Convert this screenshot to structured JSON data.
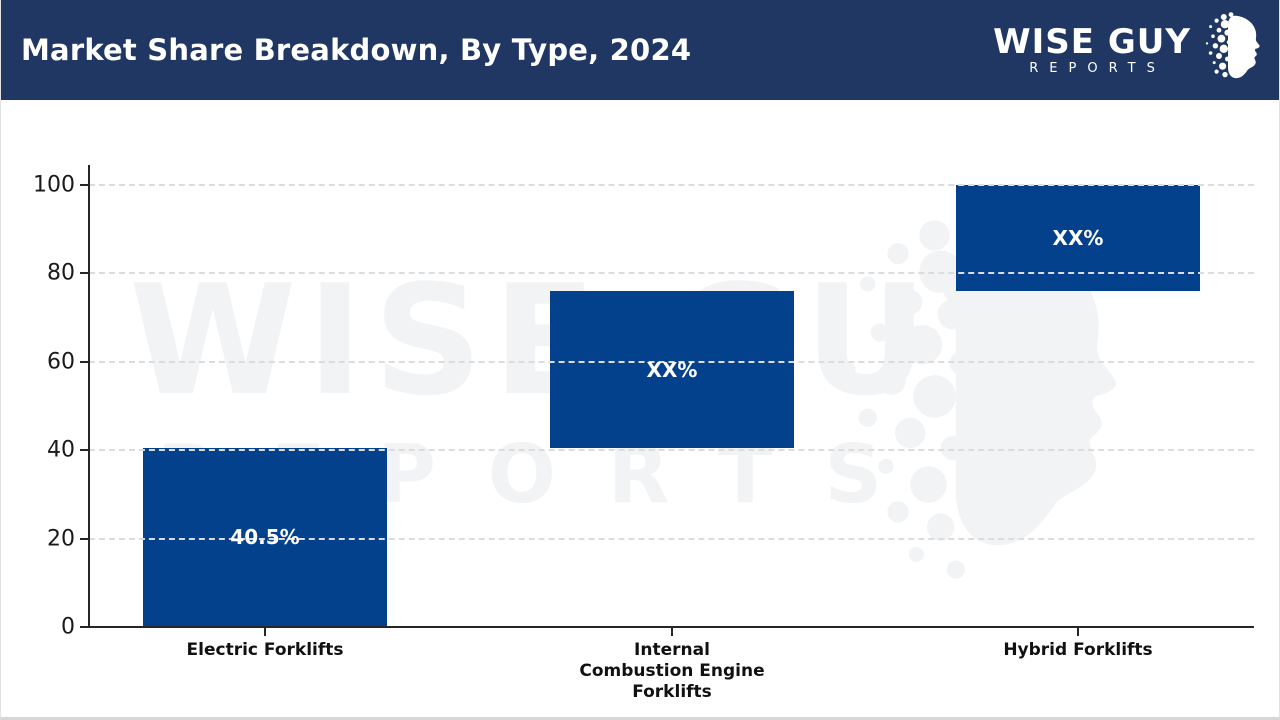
{
  "header": {
    "title": "Market Share Breakdown, By Type, 2024",
    "bg_color": "#203763",
    "logo": {
      "line1": "WISE GUY",
      "line2": "REPORTS"
    }
  },
  "watermark": {
    "line1": "WISE GUY",
    "line2": "REPORTS",
    "color": "#f2f3f5"
  },
  "chart_data": {
    "type": "bar",
    "subtype": "stacked-waterfall-percentage",
    "title": "Market Share Breakdown, By Type, 2024",
    "categories": [
      "Electric Forklifts",
      "Internal Combustion Engine Forklifts",
      "Hybrid Forklifts"
    ],
    "category_display_lines": [
      [
        "Electric Forklifts"
      ],
      [
        "Internal",
        "Combustion Engine",
        "Forklifts"
      ],
      [
        "Hybrid Forklifts"
      ]
    ],
    "segments": [
      {
        "category": "Electric Forklifts",
        "start": 0,
        "end": 40.5,
        "label": "40.5%"
      },
      {
        "category": "Internal Combustion Engine Forklifts",
        "start": 40.5,
        "end": 76,
        "label": "XX%"
      },
      {
        "category": "Hybrid Forklifts",
        "start": 76,
        "end": 100,
        "label": "XX%"
      }
    ],
    "yticks": [
      "0",
      "20",
      "40",
      "60",
      "80",
      "100"
    ],
    "ytick_values": [
      0,
      20,
      40,
      60,
      80,
      100
    ],
    "ylim": [
      0,
      104.5
    ],
    "xlabel": "",
    "ylabel": "",
    "grid": "horizontal-dashed",
    "grid_above_bars": true,
    "legend": "none",
    "bar_color": "#04418d",
    "bar_label_color": "#ffffff",
    "axis_color": "#262626"
  }
}
